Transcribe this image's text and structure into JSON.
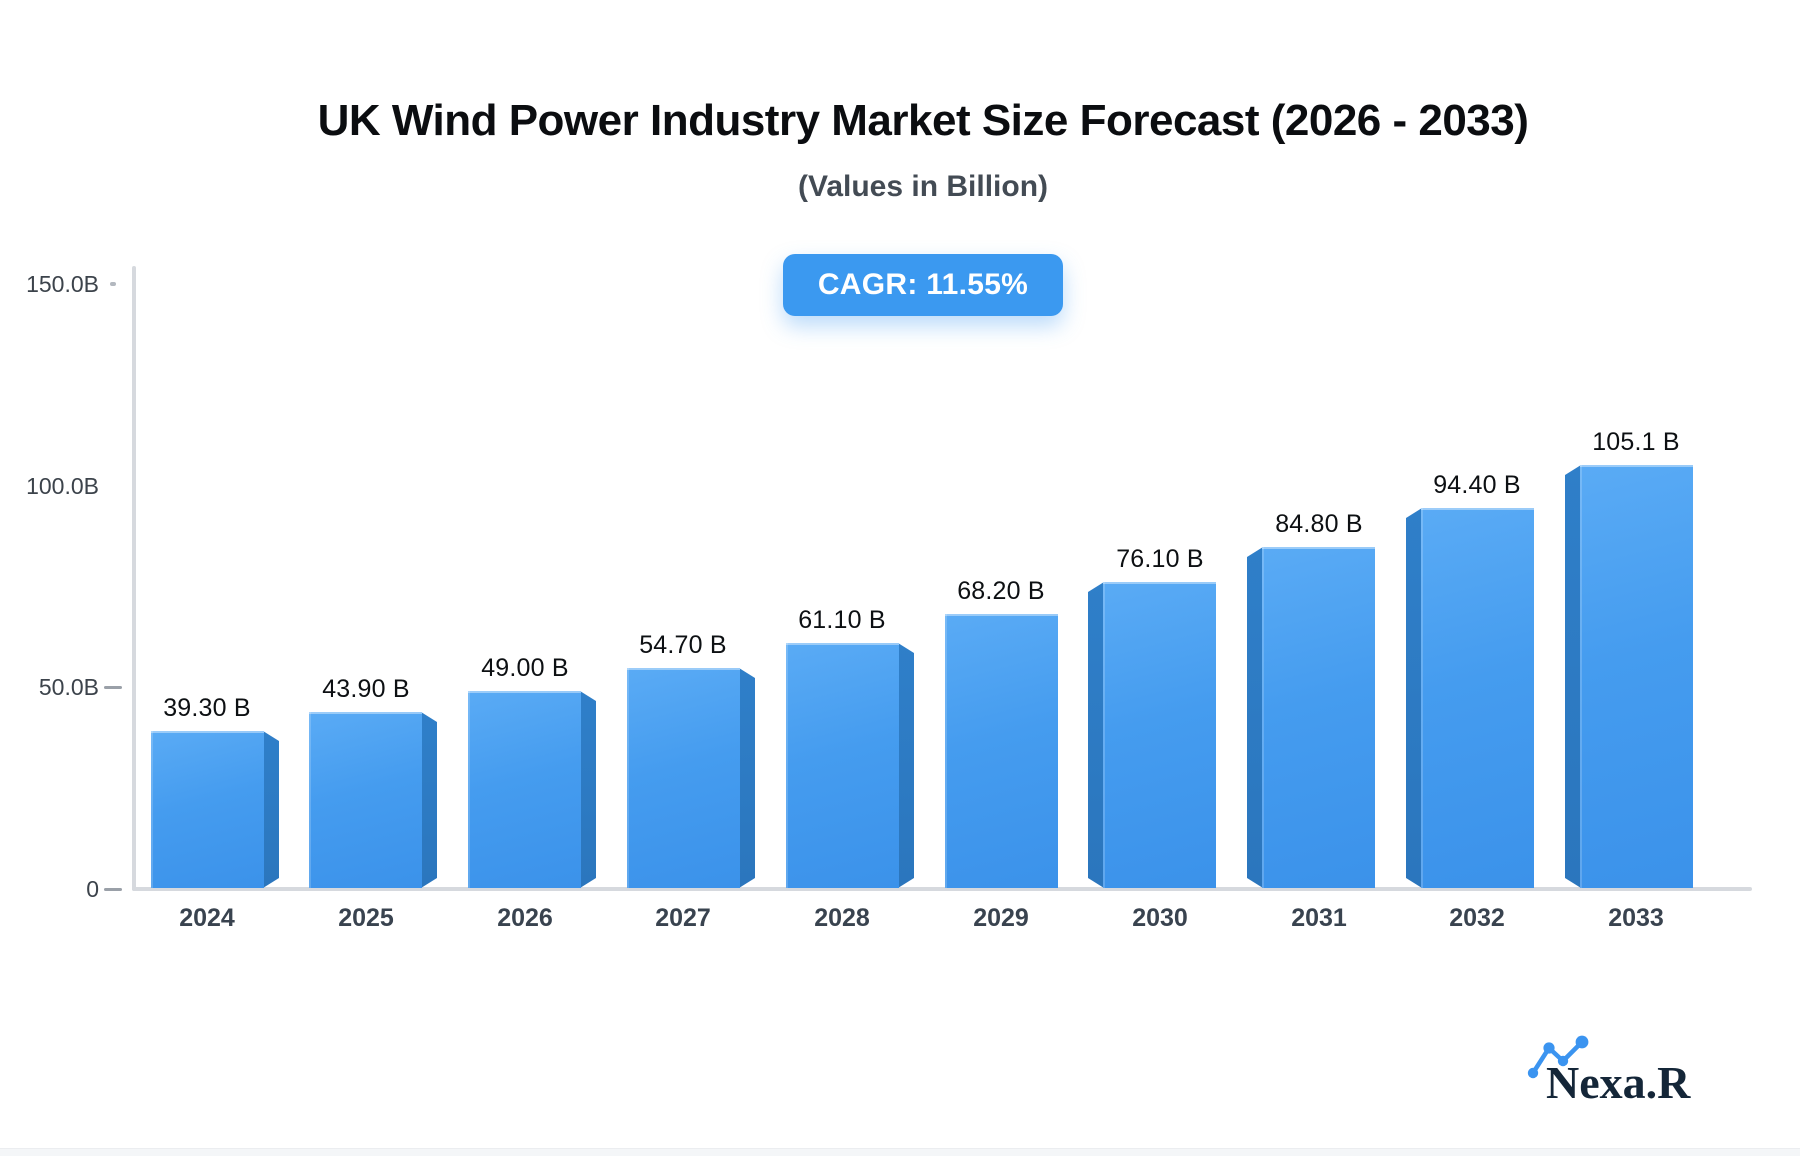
{
  "header": {
    "title": "UK Wind Power Industry Market Size Forecast (2026 - 2033)",
    "subtitle": "(Values in Billion)",
    "badge_label": "CAGR: 11.55%"
  },
  "logo": {
    "text": "Nexa.R"
  },
  "chart_data": {
    "type": "bar",
    "title": "UK Wind Power Industry Market Size Forecast (2026 - 2033)",
    "subtitle": "(Values in Billion)",
    "unit": "Billion",
    "cagr": "11.55%",
    "categories": [
      "2024",
      "2025",
      "2026",
      "2027",
      "2028",
      "2029",
      "2030",
      "2031",
      "2032",
      "2033"
    ],
    "values": [
      39.3,
      43.9,
      49.0,
      54.7,
      61.1,
      68.2,
      76.1,
      84.8,
      94.4,
      105.1
    ],
    "value_labels": [
      "39.30 B",
      "43.90 B",
      "49.00 B",
      "54.70 B",
      "61.10 B",
      "68.20 B",
      "76.10 B",
      "84.80 B",
      "94.40 B",
      "105.1 B"
    ],
    "y_axis": {
      "max": 150,
      "ticks": [
        {
          "label": "150.0B",
          "value": 150,
          "mark": "dot"
        },
        {
          "label": "100.0B",
          "value": 100,
          "mark": "none"
        },
        {
          "label": "50.0B",
          "value": 50,
          "mark": "dash"
        },
        {
          "label": "0",
          "value": 0,
          "mark": "dash"
        }
      ]
    },
    "colors": {
      "bar_face": "#459cef",
      "bar_side": "#2d7ac3",
      "badge_bg": "#3b99f0",
      "axis": "#d6d9de",
      "accent_blue": "#3b94f0"
    },
    "layout": {
      "grid": false,
      "legend": false,
      "bar_3d_side": [
        "right",
        "right",
        "right",
        "right",
        "right",
        "none",
        "left",
        "left",
        "left",
        "left"
      ]
    }
  }
}
